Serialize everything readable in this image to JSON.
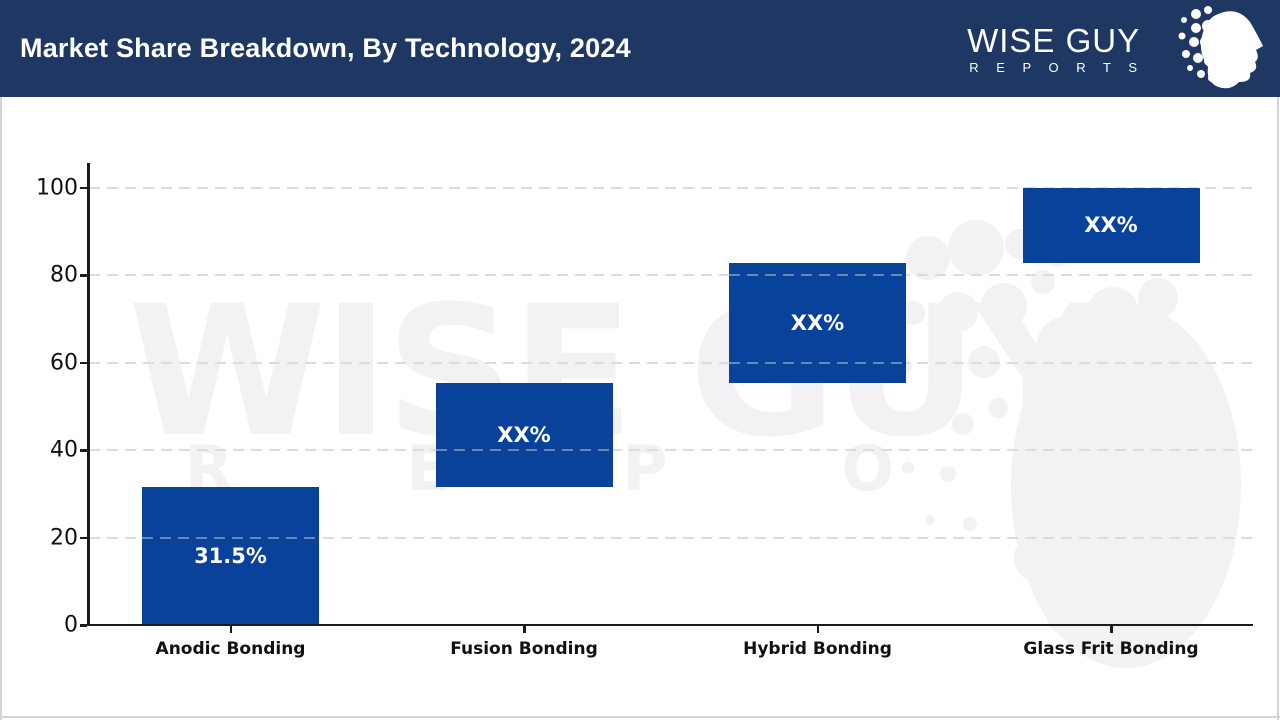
{
  "header": {
    "title": "Market Share Breakdown, By Technology, 2024",
    "brand_line1": "WISE GUY",
    "brand_line2": "R E P O R T S",
    "background": "#1f3763"
  },
  "watermark": {
    "line1": "WISE GUY",
    "line2": "R E P O R T S"
  },
  "chart_data": {
    "type": "bar",
    "subtype": "waterfall",
    "title": "Market Share Breakdown, By Technology, 2024",
    "xlabel": "",
    "ylabel": "",
    "categories": [
      "Anodic Bonding",
      "Fusion Bonding",
      "Hybrid Bonding",
      "Glass Frit Bonding"
    ],
    "segments": [
      {
        "category": "Anodic Bonding",
        "start": 0,
        "end": 31.5,
        "label": "31.5%"
      },
      {
        "category": "Fusion Bonding",
        "start": 31.5,
        "end": 55.3,
        "label": "XX%"
      },
      {
        "category": "Hybrid Bonding",
        "start": 55.3,
        "end": 82.7,
        "label": "XX%"
      },
      {
        "category": "Glass Frit Bonding",
        "start": 82.7,
        "end": 100,
        "label": "XX%"
      }
    ],
    "values_displayed": [
      "31.5%",
      "XX%",
      "XX%",
      "XX%"
    ],
    "yticks": [
      0,
      20,
      40,
      60,
      80,
      100
    ],
    "ylim": [
      0,
      106
    ],
    "grid": "horizontal-dashed",
    "legend": "none",
    "colors": {
      "bar": "#08429B",
      "grid": "#dcdcdc",
      "axis": "#1c1c1c",
      "bar_label": "#ffffff",
      "header_bg": "#1f3763",
      "watermark": "#f2f2f4"
    }
  }
}
